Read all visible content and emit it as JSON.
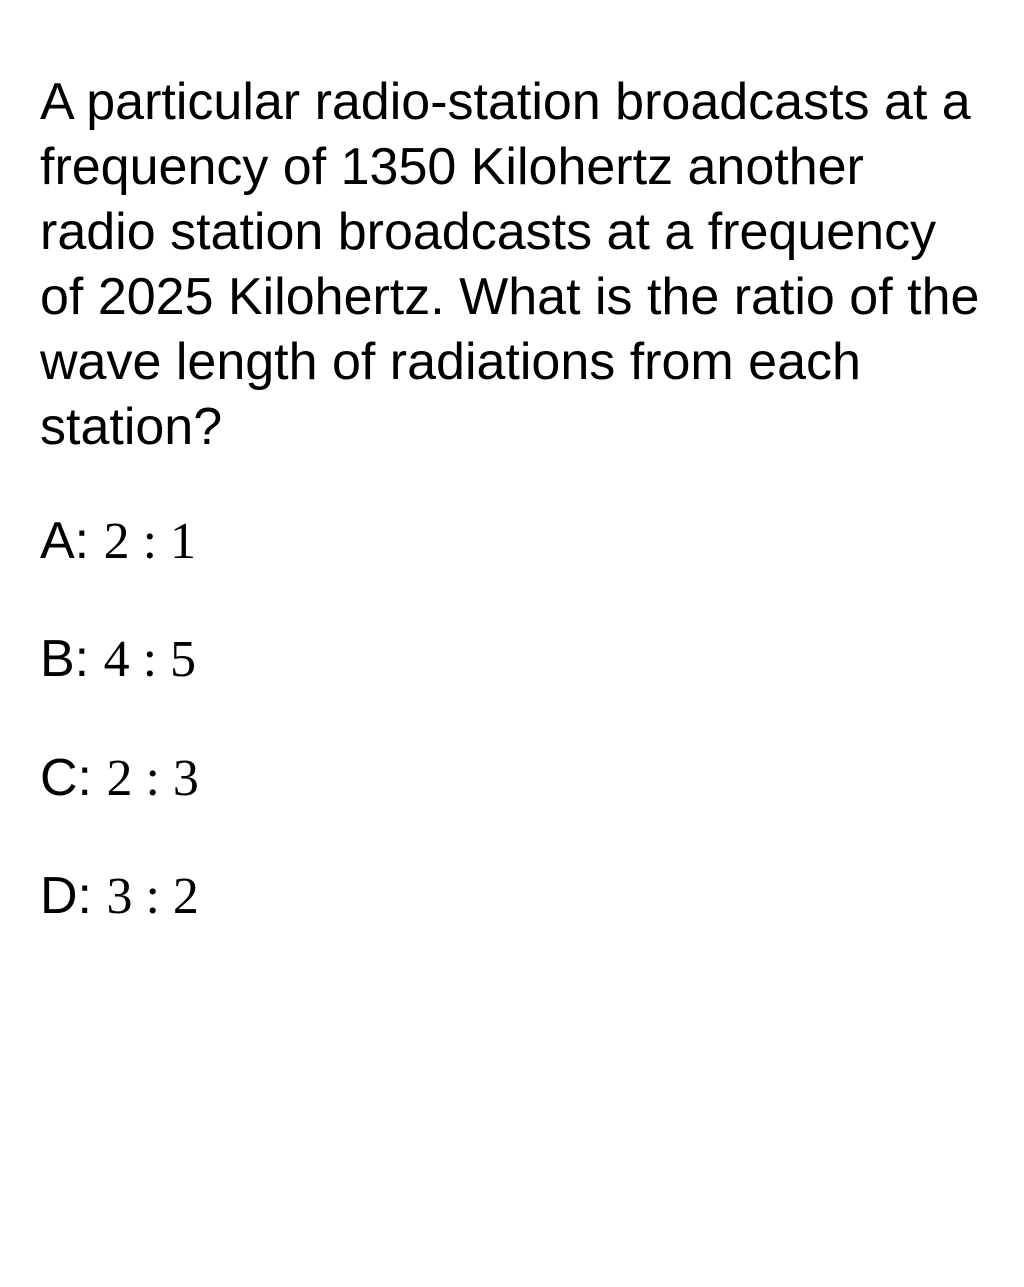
{
  "question": {
    "text": "A particular radio-station broadcasts at a frequency of 1350 Kilohertz another radio station broadcasts at a frequency of 2025 Kilohertz. What is the ratio of the wave length of radiations from each station?",
    "font_size": 52,
    "color": "#000000"
  },
  "options": [
    {
      "label": "A:",
      "value": "2 : 1"
    },
    {
      "label": "B:",
      "value": "4 : 5"
    },
    {
      "label": "C:",
      "value": "2 : 3"
    },
    {
      "label": "D:",
      "value": "3 : 2"
    }
  ],
  "styling": {
    "background_color": "#ffffff",
    "text_color": "#000000",
    "question_font_size": 52,
    "option_font_size": 52,
    "option_value_font_family": "serif",
    "option_gap": 55
  }
}
